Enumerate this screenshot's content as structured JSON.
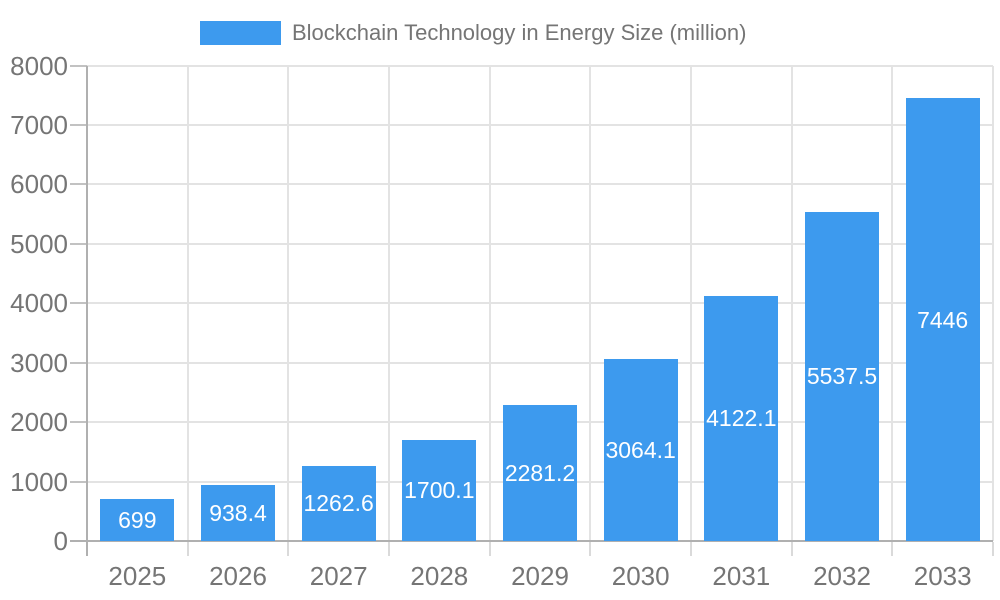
{
  "chart_data": {
    "type": "bar",
    "title": "Blockchain Technology in Energy Size (million)",
    "legend": {
      "position": "top",
      "entries": [
        "Blockchain Technology in Energy Size (million)"
      ]
    },
    "categories": [
      "2025",
      "2026",
      "2027",
      "2028",
      "2029",
      "2030",
      "2031",
      "2032",
      "2033"
    ],
    "values": [
      699,
      938.4,
      1262.6,
      1700.1,
      2281.2,
      3064.1,
      4122.1,
      5537.5,
      7446
    ],
    "value_labels": [
      "699",
      "938.4",
      "1262.6",
      "1700.1",
      "2281.2",
      "3064.1",
      "4122.1",
      "5537.5",
      "7446"
    ],
    "xlabel": "",
    "ylabel": "",
    "ylim": [
      0,
      8000
    ],
    "yticks": [
      0,
      1000,
      2000,
      3000,
      4000,
      5000,
      6000,
      7000,
      8000
    ],
    "grid": true,
    "colors": {
      "bar": "#3D9AEE",
      "grid": "#E3E3E3",
      "axis": "#B0B0B0",
      "tick": "#C2C2C2",
      "tick_light": "#DADADA",
      "label_text": "#757575",
      "value_text": "#FFFFFF",
      "background": "#FFFFFF"
    }
  }
}
